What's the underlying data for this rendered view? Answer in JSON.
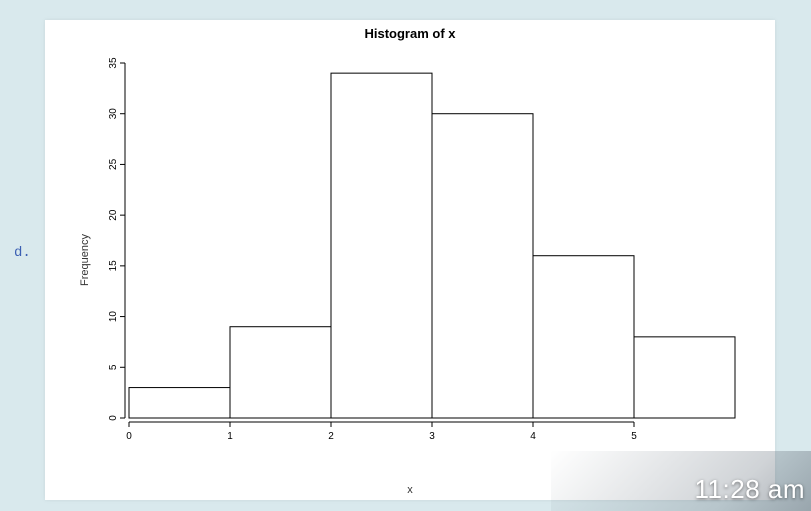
{
  "page": {
    "background_color": "#d9e9ed",
    "panel_color": "#ffffff",
    "item_label": "d.",
    "item_label_color": "#3b5fb3"
  },
  "clock": {
    "text": "11:28 am",
    "color": "#ffffff",
    "fontsize": 26
  },
  "histogram": {
    "type": "histogram",
    "title": "Histogram of x",
    "title_fontsize": 13,
    "title_weight": "bold",
    "xlabel": "x",
    "ylabel": "Frequency",
    "label_fontsize": 11,
    "bin_edges": [
      0,
      1,
      2,
      3,
      4,
      5,
      6
    ],
    "values": [
      3,
      9,
      34,
      30,
      16,
      8
    ],
    "xlim": [
      0,
      6
    ],
    "ylim": [
      0,
      35
    ],
    "xticks": [
      0,
      1,
      2,
      3,
      4,
      5
    ],
    "yticks": [
      0,
      5,
      10,
      15,
      20,
      25,
      30,
      35
    ],
    "bar_fill": "#ffffff",
    "bar_stroke": "#000000",
    "bar_stroke_width": 1,
    "axis_color": "#000000",
    "axis_width": 1,
    "tick_length": 5,
    "tick_fontsize": 10,
    "grid": false
  }
}
